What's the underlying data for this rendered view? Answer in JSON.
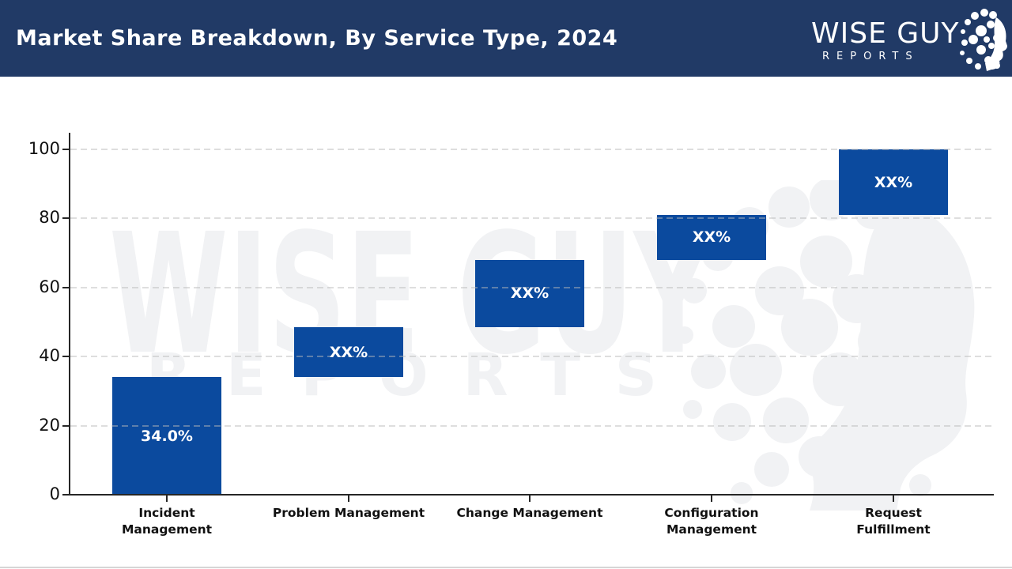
{
  "header": {
    "title": "Market Share Breakdown, By Service Type, 2024",
    "logo": {
      "wordmark": "WISE GUY",
      "subtitle": "REPORTS"
    }
  },
  "watermark": {
    "wordmark": "WISE GUY",
    "subtitle": "REPORTS"
  },
  "chart_data": {
    "type": "bar",
    "subtype": "waterfall",
    "title": "Market Share Breakdown, By Service Type, 2024",
    "categories": [
      "Incident\nManagement",
      "Problem Management",
      "Change Management",
      "Configuration\nManagement",
      "Request\nFulfillment"
    ],
    "bars": [
      {
        "category": "Incident Management",
        "start": 0,
        "end": 34,
        "label": "34.0%"
      },
      {
        "category": "Problem Management",
        "start": 34,
        "end": 48.5,
        "label": "XX%"
      },
      {
        "category": "Change Management",
        "start": 48.5,
        "end": 68,
        "label": "XX%"
      },
      {
        "category": "Configuration Management",
        "start": 68,
        "end": 81,
        "label": "XX%"
      },
      {
        "category": "Request Fulfillment",
        "start": 81,
        "end": 100,
        "label": "XX%"
      }
    ],
    "yticks": [
      0,
      20,
      40,
      60,
      80,
      100
    ],
    "ylim": [
      0,
      100
    ],
    "xlabel": "",
    "ylabel": "",
    "grid": "horizontal-dashed",
    "legend": "none",
    "bar_color": "#0b4a9e",
    "bar_label_color": "#ffffff"
  },
  "colors": {
    "header_bg": "#213a66",
    "bar": "#0b4a9e",
    "axis": "#262626",
    "grid": "#bcbcbc",
    "watermark": "#f1f2f4",
    "background": "#ffffff"
  }
}
